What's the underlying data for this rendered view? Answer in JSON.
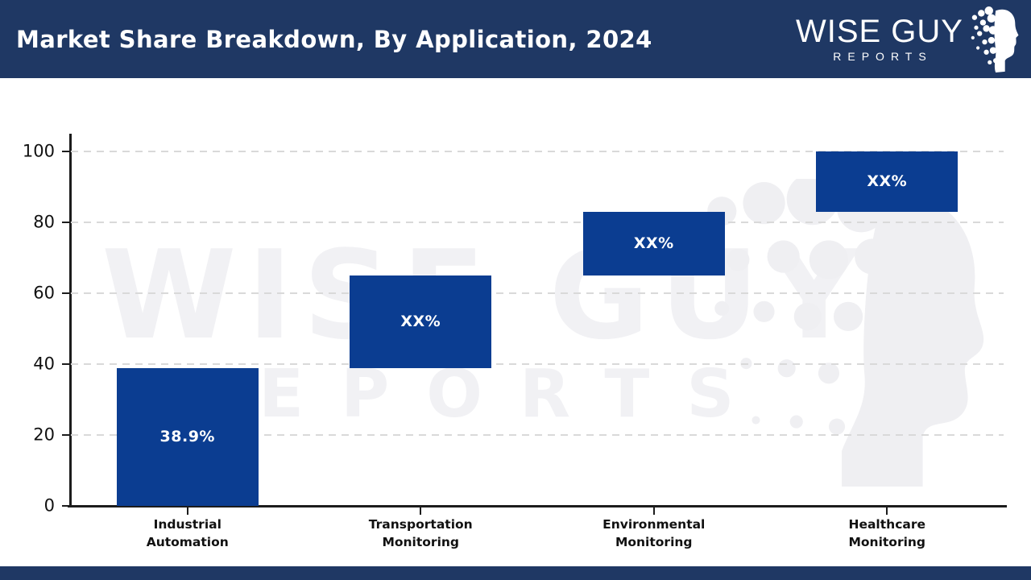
{
  "header": {
    "title": "Market Share Breakdown, By Application, 2024",
    "logo": {
      "name": "WISE GUY",
      "sub": "REPORTS"
    }
  },
  "watermark": {
    "line1": "WISE GUY",
    "line2": "REPORTS"
  },
  "footer": {
    "text": ""
  },
  "chart_data": {
    "type": "bar",
    "subtype": "floating-waterfall-breakdown",
    "title": "Market Share Breakdown, By Application, 2024",
    "categories": [
      "Industrial\nAutomation",
      "Transportation\nMonitoring",
      "Environmental\nMonitoring",
      "Healthcare\nMonitoring"
    ],
    "series": [
      {
        "name": "Market share (%)",
        "segments": [
          {
            "category": "Industrial Automation",
            "from": 0,
            "to": 38.9,
            "label": "38.9%"
          },
          {
            "category": "Transportation Monitoring",
            "from": 38.9,
            "to": 65,
            "label": "XX%"
          },
          {
            "category": "Environmental Monitoring",
            "from": 65,
            "to": 83,
            "label": "XX%"
          },
          {
            "category": "Healthcare Monitoring",
            "from": 83,
            "to": 100,
            "label": "XX%"
          }
        ]
      }
    ],
    "ylim": [
      0,
      100
    ],
    "yticks": [
      0,
      20,
      40,
      60,
      80,
      100
    ],
    "ylabel": "",
    "xlabel": "",
    "grid": {
      "horizontal": true,
      "style": "dashed"
    },
    "legend": "none",
    "bar_color": "#0B3D91"
  },
  "colors": {
    "header_bg": "#1F3864",
    "footer_bg": "#1F3864",
    "bar": "#0B3D91",
    "axis": "#1c1c1c",
    "gridline": "#d9d9d9",
    "watermark": "#f1f1f4",
    "title_text": "#ffffff",
    "bar_label_text": "#ffffff"
  }
}
